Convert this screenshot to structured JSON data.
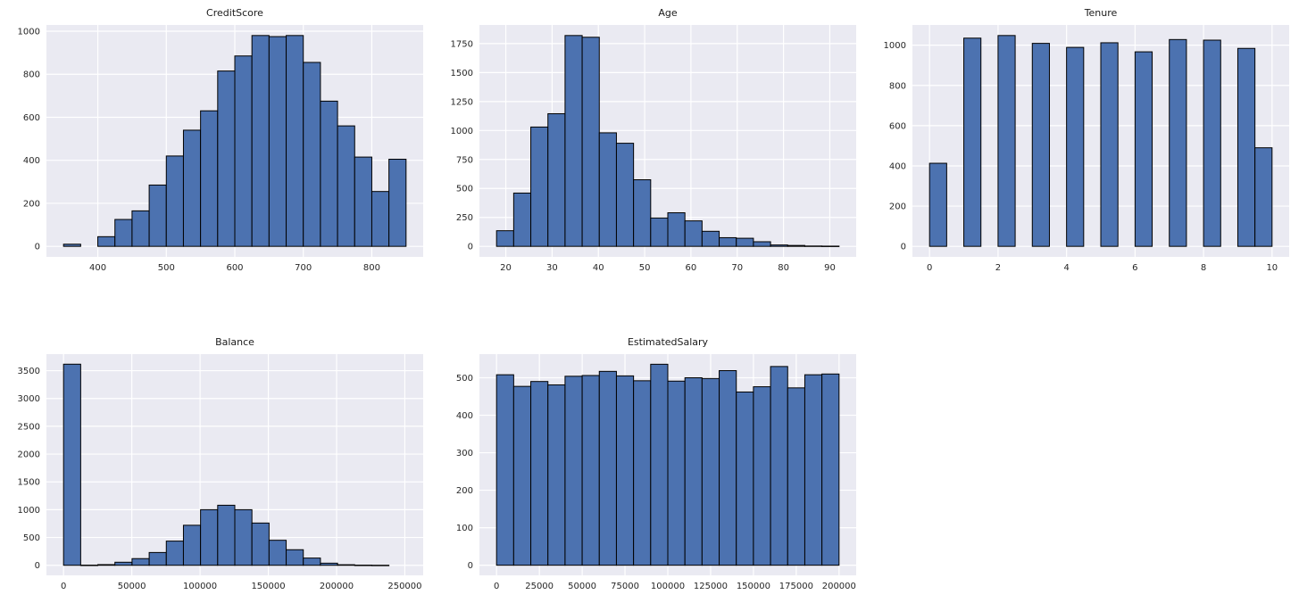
{
  "figure": {
    "background": "#ffffff",
    "axes_background": "#eaeaf2",
    "grid_color": "#ffffff",
    "bar_fill": "#4c72b0",
    "bar_edge": "#000000",
    "tick_color": "#262626",
    "title_color": "#1a1a1a"
  },
  "chart_data": [
    {
      "type": "bar",
      "subtype": "histogram",
      "title": "CreditScore",
      "bin_start": 350,
      "bin_width": 25,
      "values": [
        10,
        0,
        45,
        125,
        165,
        285,
        420,
        540,
        630,
        815,
        885,
        980,
        975,
        980,
        855,
        675,
        560,
        415,
        255,
        405
      ],
      "xticks": [
        400,
        500,
        600,
        700,
        800
      ],
      "yticks": [
        0,
        200,
        400,
        600,
        800,
        1000
      ],
      "xlim": [
        325,
        875
      ],
      "ylim": [
        -49,
        1029
      ],
      "grid": true,
      "legend": false
    },
    {
      "type": "bar",
      "subtype": "histogram",
      "title": "Age",
      "bin_start": 18,
      "bin_width": 3.7,
      "values": [
        135,
        460,
        1030,
        1145,
        1820,
        1805,
        980,
        890,
        575,
        245,
        290,
        220,
        130,
        75,
        70,
        40,
        12,
        8,
        3,
        2
      ],
      "xticks": [
        20,
        30,
        40,
        50,
        60,
        70,
        80,
        90
      ],
      "yticks": [
        0,
        250,
        500,
        750,
        1000,
        1250,
        1500,
        1750
      ],
      "xlim": [
        14.3,
        95.7
      ],
      "ylim": [
        -91,
        1911
      ],
      "grid": true,
      "legend": false
    },
    {
      "type": "bar",
      "subtype": "histogram",
      "title": "Tenure",
      "bin_start": 0,
      "bin_width": 0.5,
      "values": [
        413,
        0,
        1035,
        0,
        1048,
        0,
        1009,
        0,
        989,
        0,
        1012,
        0,
        967,
        0,
        1028,
        0,
        1025,
        0,
        984,
        490
      ],
      "xticks": [
        0,
        2,
        4,
        6,
        8,
        10
      ],
      "yticks": [
        0,
        200,
        400,
        600,
        800,
        1000
      ],
      "xlim": [
        -0.5,
        10.5
      ],
      "ylim": [
        -52.4,
        1100.4
      ],
      "grid": true,
      "legend": false
    },
    {
      "type": "bar",
      "subtype": "histogram",
      "title": "Balance",
      "bin_start": 0,
      "bin_width": 12545,
      "values": [
        3617,
        3,
        12,
        55,
        120,
        230,
        435,
        720,
        1000,
        1080,
        1000,
        760,
        450,
        280,
        130,
        38,
        10,
        3,
        1,
        0
      ],
      "xticks": [
        0,
        50000,
        100000,
        150000,
        200000,
        250000
      ],
      "yticks": [
        0,
        500,
        1000,
        1500,
        2000,
        2500,
        3000,
        3500
      ],
      "xlim": [
        -12545,
        263443
      ],
      "ylim": [
        -181,
        3798
      ],
      "grid": true,
      "legend": false
    },
    {
      "type": "bar",
      "subtype": "histogram",
      "title": "EstimatedSalary",
      "bin_start": 0,
      "bin_width": 10000,
      "values": [
        508,
        477,
        490,
        481,
        504,
        506,
        517,
        505,
        492,
        536,
        491,
        500,
        498,
        519,
        462,
        476,
        530,
        473,
        508,
        510
      ],
      "xticks": [
        0,
        25000,
        50000,
        75000,
        100000,
        125000,
        150000,
        175000,
        200000
      ],
      "yticks": [
        0,
        100,
        200,
        300,
        400,
        500
      ],
      "xlim": [
        -10000,
        210000
      ],
      "ylim": [
        -27,
        563
      ],
      "grid": true,
      "legend": false
    }
  ]
}
